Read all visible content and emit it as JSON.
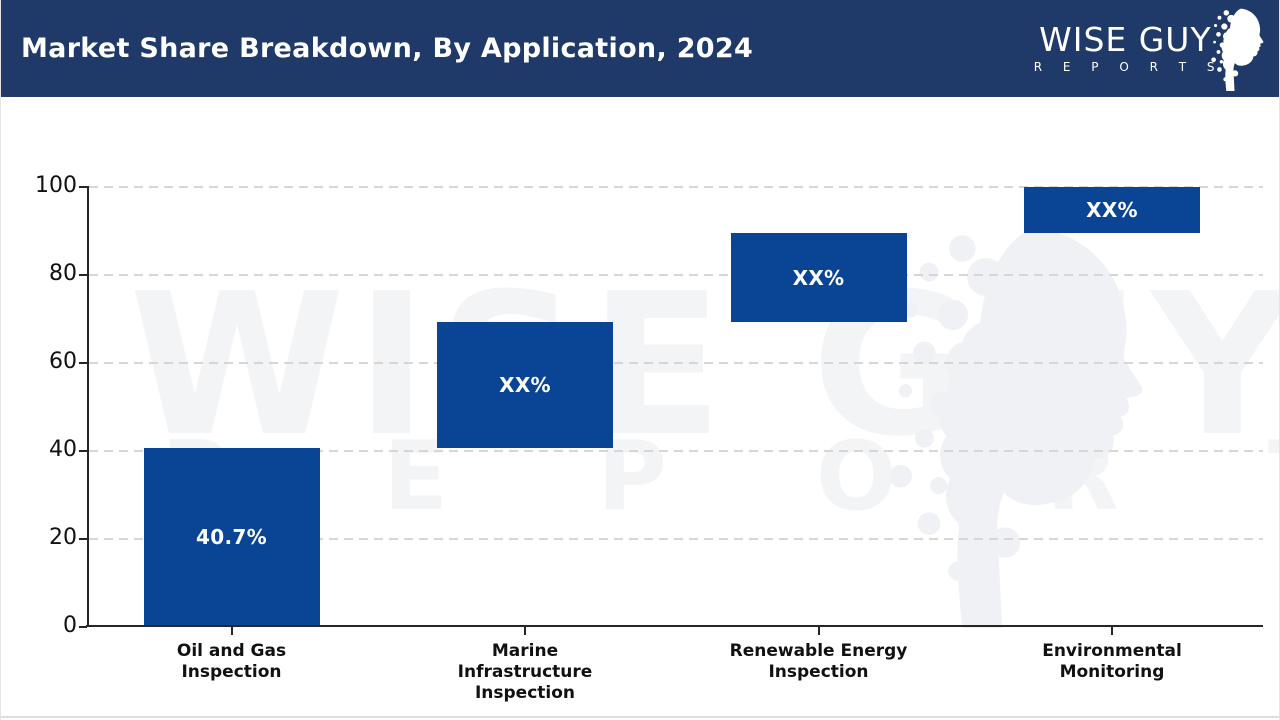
{
  "header": {
    "title": "Market Share Breakdown, By Application, 2024",
    "logo": {
      "brand_top": "WISE GUY",
      "brand_bottom": "R E P O R T S"
    }
  },
  "watermark": {
    "brand_top": "WISE GUY",
    "brand_bottom": "R E P O R T S"
  },
  "chart_data": {
    "type": "bar",
    "variant": "floating-waterfall",
    "title": "Market Share Breakdown, By Application, 2024",
    "categories": [
      [
        "Oil and Gas",
        "Inspection"
      ],
      [
        "Marine",
        "Infrastructure",
        "Inspection"
      ],
      [
        "Renewable Energy",
        "Inspection"
      ],
      [
        "Environmental",
        "Monitoring"
      ]
    ],
    "bars": [
      {
        "label": "40.7%",
        "start": 0,
        "end": 40.7
      },
      {
        "label": "XX%",
        "start": 40.7,
        "end": 69.3
      },
      {
        "label": "XX%",
        "start": 69.3,
        "end": 89.5
      },
      {
        "label": "XX%",
        "start": 89.5,
        "end": 100
      }
    ],
    "ylim": [
      0,
      100
    ],
    "yticks": [
      0,
      20,
      40,
      60,
      80,
      100
    ],
    "grid": {
      "horizontal": true,
      "style": "dashed"
    },
    "legend": "none",
    "colors": {
      "bar": "#0a4595",
      "bar_label": "#ffffff",
      "header_bg": "#1f3a68",
      "axis": "#262626",
      "gridline": "#d6d6d6",
      "watermark": "#f3f4f6"
    }
  }
}
